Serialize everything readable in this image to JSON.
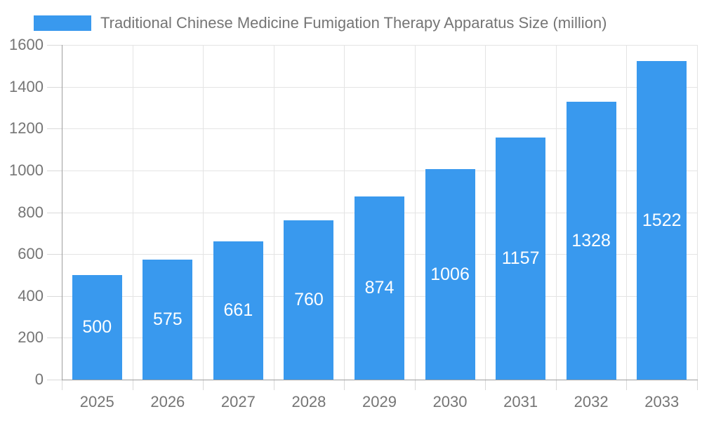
{
  "legend": {
    "label": "Traditional Chinese Medicine Fumigation Therapy Apparatus Size (million)"
  },
  "chart_data": {
    "type": "bar",
    "title": "Traditional Chinese Medicine Fumigation Therapy Apparatus Size (million)",
    "categories": [
      "2025",
      "2026",
      "2027",
      "2028",
      "2029",
      "2030",
      "2031",
      "2032",
      "2033"
    ],
    "values": [
      500,
      575,
      661,
      760,
      874,
      1006,
      1157,
      1328,
      1522
    ],
    "xlabel": "",
    "ylabel": "",
    "ylim": [
      0,
      1600
    ],
    "yticks": [
      0,
      200,
      400,
      600,
      800,
      1000,
      1200,
      1400,
      1600
    ],
    "grid": true,
    "legend_position": "top-left",
    "value_labels": "inside-center"
  },
  "colors": {
    "bar": "#3999ee",
    "grid": "#e4e4e4",
    "tick": "#d9d9d9",
    "axis": "#9e9e9e",
    "text": "#757575",
    "value_label": "#ffffff",
    "background": "#ffffff"
  }
}
